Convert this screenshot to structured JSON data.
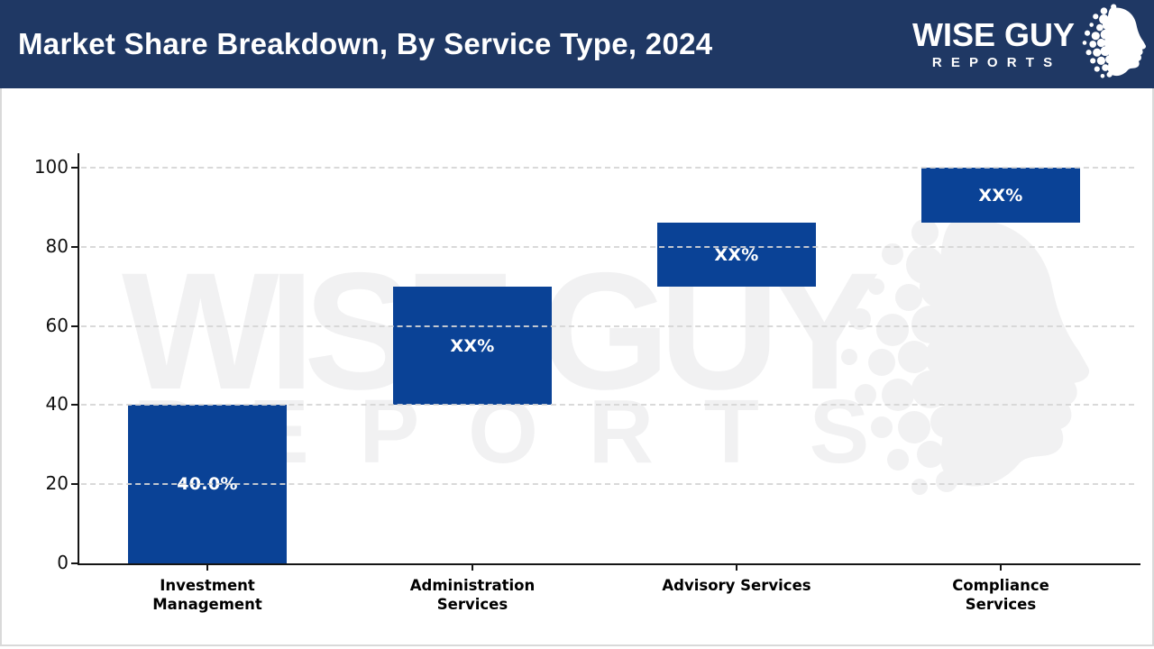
{
  "header": {
    "title": "Market Share Breakdown, By Service Type, 2024",
    "bg_color": "#1f3864",
    "logo": {
      "wordmark": "WISE GUY",
      "subtext": "R E P O R T S"
    }
  },
  "watermark": {
    "line1": "WISE GUY",
    "line2": "R E P O R T S"
  },
  "chart_data": {
    "type": "bar",
    "subtype": "waterfall",
    "title": "Market Share Breakdown, By Service Type, 2024",
    "categories": [
      "Investment Management",
      "Administration Services",
      "Advisory Services",
      "Compliance Services"
    ],
    "category_display_lines": [
      [
        "Investment",
        "Management"
      ],
      [
        "Administration",
        "Services"
      ],
      [
        "Advisory Services"
      ],
      [
        "Compliance",
        "Services"
      ]
    ],
    "segments": [
      {
        "category": "Investment Management",
        "start": 0,
        "end": 40,
        "label": "40.0%"
      },
      {
        "category": "Administration Services",
        "start": 40,
        "end": 70,
        "label": "XX%"
      },
      {
        "category": "Advisory Services",
        "start": 70,
        "end": 86,
        "label": "XX%"
      },
      {
        "category": "Compliance Services",
        "start": 86,
        "end": 100,
        "label": "XX%"
      }
    ],
    "y_ticks": [
      0,
      20,
      40,
      60,
      80,
      100
    ],
    "ylim": [
      0,
      100
    ],
    "xlabel": "",
    "ylabel": "",
    "grid": "horizontal-dashed",
    "legend": "none",
    "bar_color": "#0a4296",
    "value_label_color": "#ffffff",
    "axis_color": "#151515",
    "gridline_color": "#d5d5d5"
  }
}
